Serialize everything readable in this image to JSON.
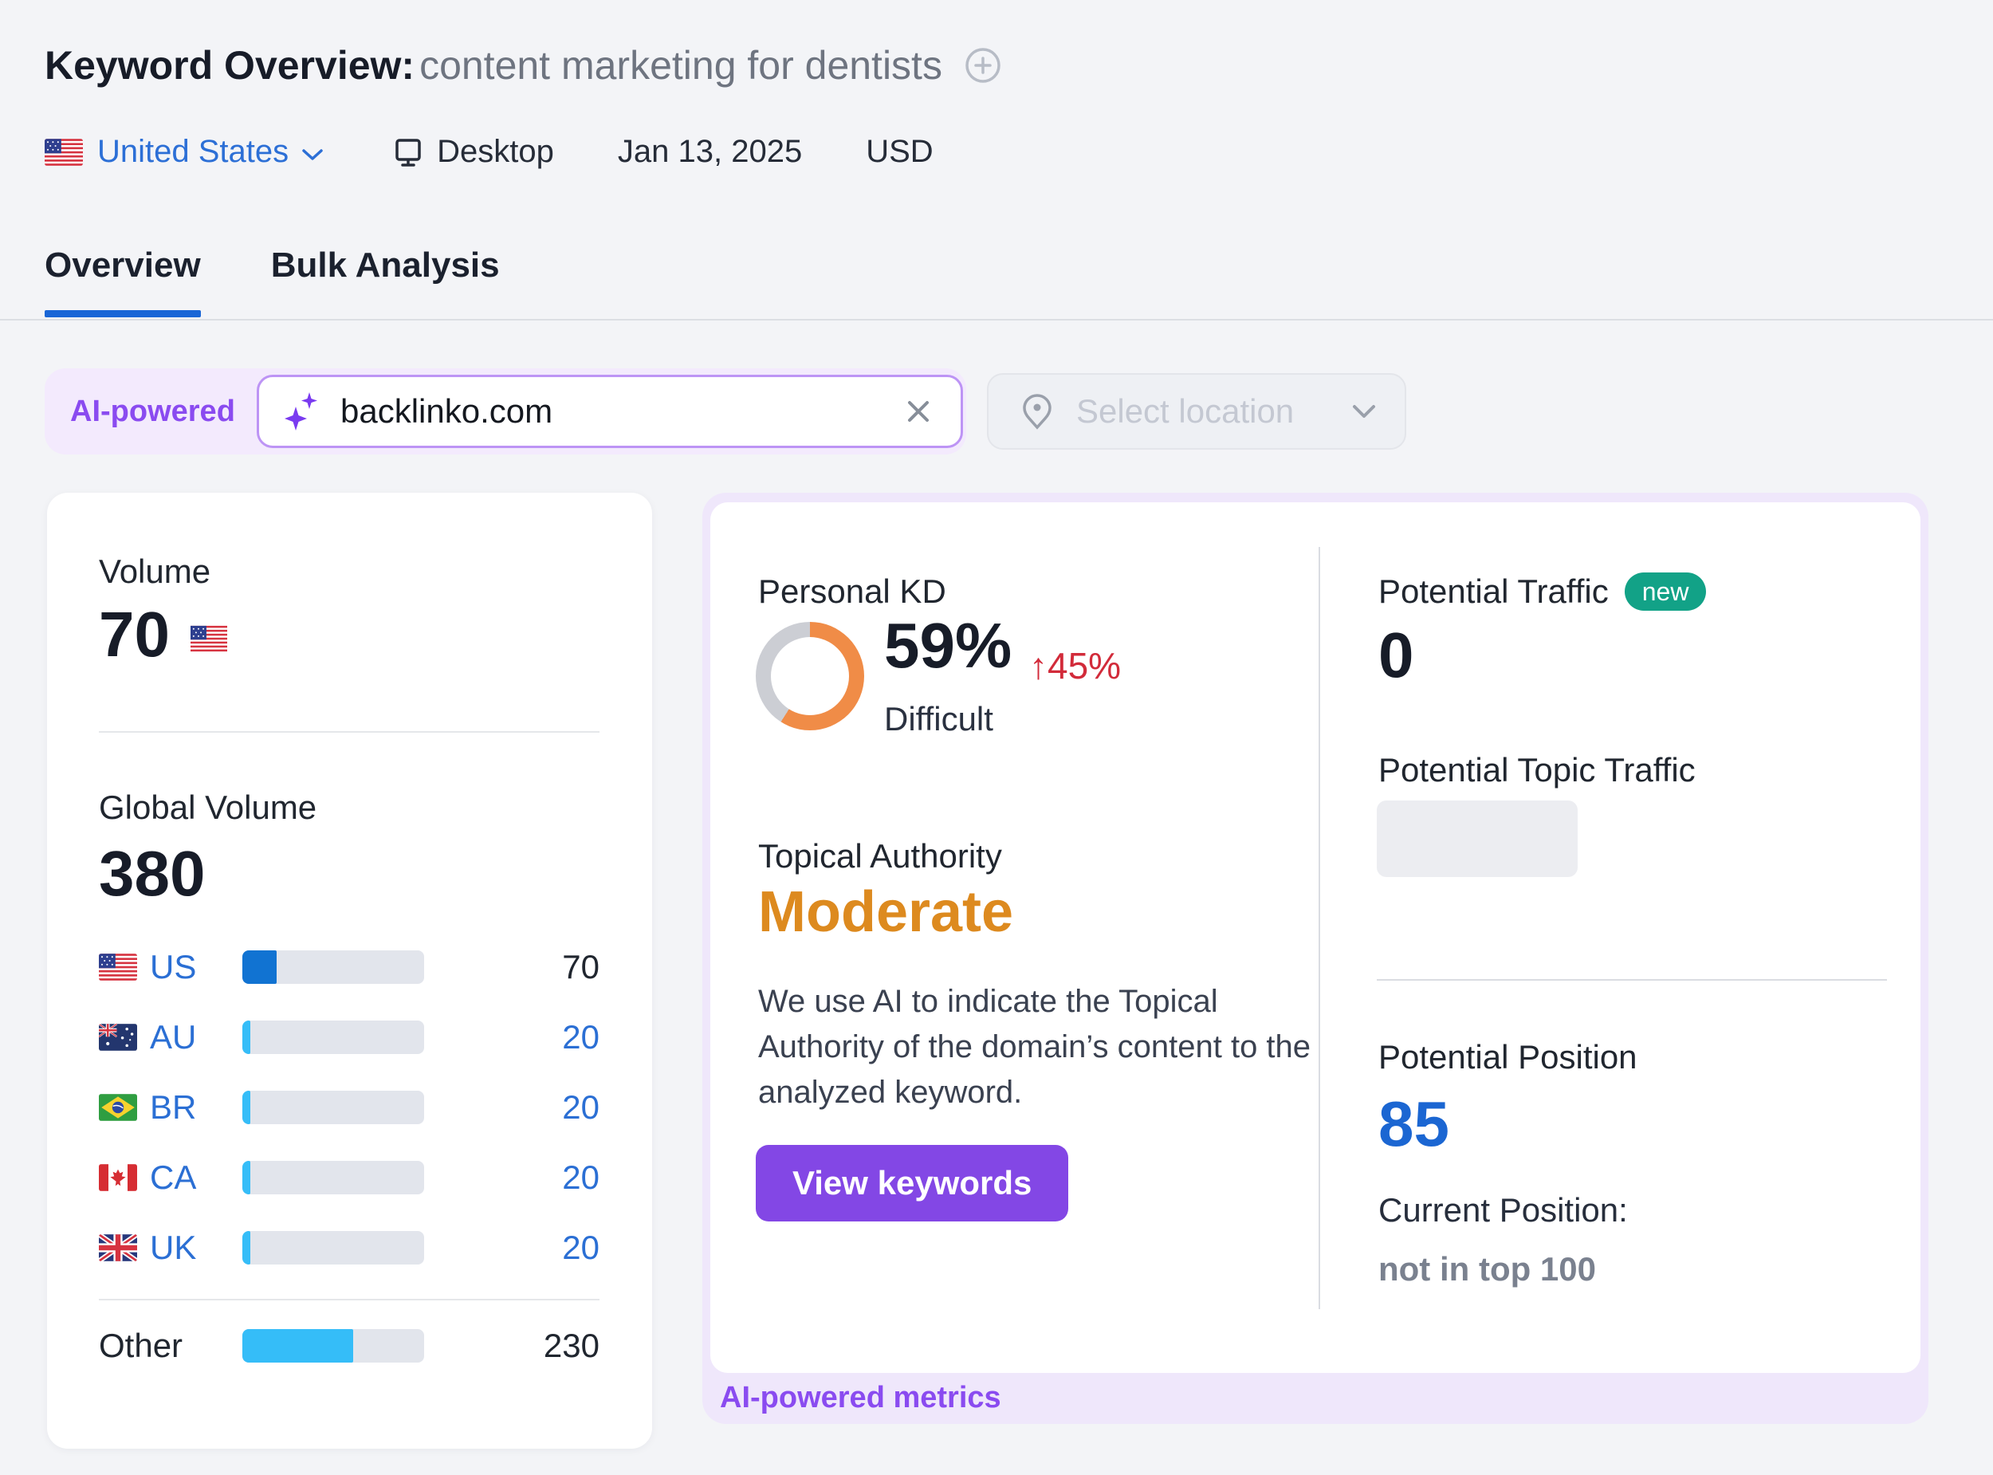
{
  "header": {
    "title_prefix": "Keyword Overview:",
    "title_keyword": "content marketing for dentists",
    "location": "United States",
    "device": "Desktop",
    "date": "Jan 13, 2025",
    "currency": "USD"
  },
  "tabs": {
    "overview": "Overview",
    "bulk_analysis": "Bulk Analysis"
  },
  "search": {
    "ai_label": "AI-powered",
    "value": "backlinko.com",
    "location_placeholder": "Select location"
  },
  "volume_card": {
    "volume_label": "Volume",
    "volume_value": "70",
    "global_label": "Global Volume",
    "global_value": "380",
    "countries": [
      {
        "code": "US",
        "value": "70",
        "pct": 19
      },
      {
        "code": "AU",
        "value": "20",
        "pct": 4.5
      },
      {
        "code": "BR",
        "value": "20",
        "pct": 4.5
      },
      {
        "code": "CA",
        "value": "20",
        "pct": 4.5
      },
      {
        "code": "UK",
        "value": "20",
        "pct": 4.5
      }
    ],
    "other": {
      "label": "Other",
      "value": "230",
      "pct": 61
    }
  },
  "metrics_card": {
    "kd": {
      "label": "Personal KD",
      "percent": 59,
      "display": "59%",
      "delta": "↑45%",
      "level": "Difficult"
    },
    "topical": {
      "label": "Topical Authority",
      "value": "Moderate",
      "description": "We use AI to indicate the Topical Authority of the domain’s content to the analyzed keyword."
    },
    "view_keywords_label": "View keywords",
    "potential_traffic": {
      "label": "Potential Traffic",
      "badge": "new",
      "value": "0"
    },
    "potential_topic_traffic_label": "Potential Topic Traffic",
    "potential_position": {
      "label": "Potential Position",
      "value": "85"
    },
    "current_position_label": "Current Position:",
    "current_position_value": "not in top 100",
    "footer": "AI-powered metrics"
  },
  "colors": {
    "kd_fill": "#f08c47",
    "kd_track": "#ccced4",
    "accent_blue": "#2b6fd4",
    "bar_dark_blue": "#1173d2",
    "bar_light_blue": "#35bdf8",
    "purple": "#8a4bf0",
    "button_purple": "#8347e5",
    "badge_green": "#12a287",
    "delta_red": "#d22b3a",
    "moderate_orange": "#dd8a1f"
  }
}
